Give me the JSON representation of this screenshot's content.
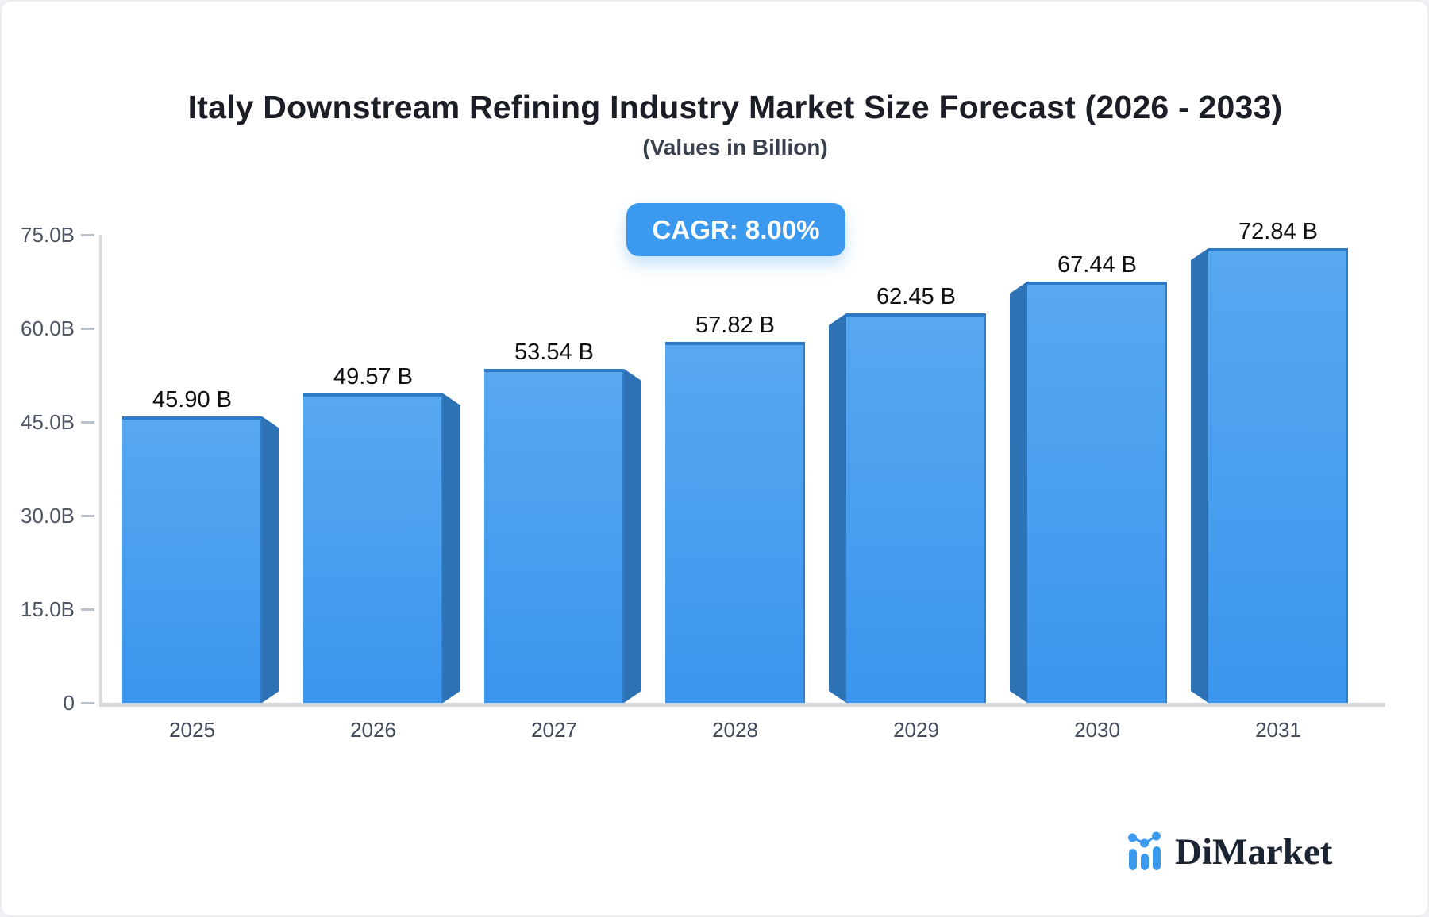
{
  "chart_data": {
    "type": "bar",
    "title": "Italy Downstream Refining Industry Market Size Forecast (2026 - 2033)",
    "subtitle": "(Values in Billion)",
    "cagr_label": "CAGR: 8.00%",
    "categories": [
      "2025",
      "2026",
      "2027",
      "2028",
      "2029",
      "2030",
      "2031"
    ],
    "values": [
      45.9,
      49.57,
      53.54,
      57.82,
      62.45,
      67.44,
      72.84
    ],
    "value_labels": [
      "45.90 B",
      "49.57 B",
      "53.54 B",
      "57.82 B",
      "62.45 B",
      "67.44 B",
      "72.84 B"
    ],
    "xlabel": "",
    "ylabel": "",
    "ylim": [
      0,
      75
    ],
    "ytick_values": [
      0,
      15,
      30,
      45,
      60,
      75
    ],
    "ytick_labels": [
      "0",
      "15.0B",
      "30.0B",
      "45.0B",
      "60.0B",
      "75.0B"
    ],
    "grid": false,
    "legend": "none",
    "bar_color_top": "#58a8f0",
    "bar_color_bottom": "#3b95ee",
    "bar_side_color": "#2d72b5",
    "badge_color": "#3b9af0"
  },
  "logo": {
    "text": "DiMarket",
    "icon": "mini-bar-chart-icon",
    "icon_color": "#3b99ee"
  }
}
